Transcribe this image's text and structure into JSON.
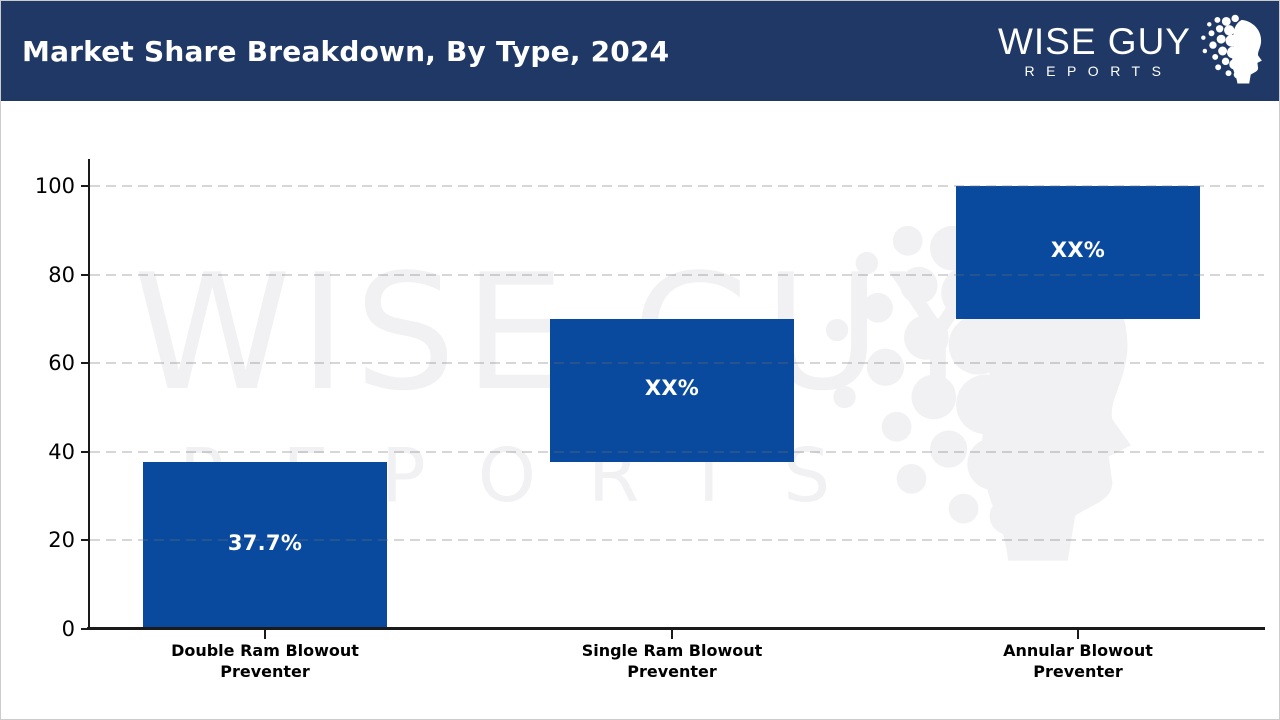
{
  "header": {
    "title": "Market Share Breakdown, By Type, 2024",
    "logo": {
      "name": "wise-guy-reports-logo",
      "line1": "WISE GUY",
      "line2": "REPORTS"
    }
  },
  "watermark": {
    "line1": "WISE GUY",
    "line2": "REPORTS"
  },
  "colors": {
    "header_bg": "#1F3866",
    "bar": "#0A4A9E",
    "bar_label": "#FFFFFF",
    "axis": "#1A1A1A",
    "tick_text": "#000000",
    "watermark": "#F1F1F4",
    "border": "#CCCCCC"
  },
  "chart_data": {
    "type": "bar",
    "subtype": "floating-stacked-percentage",
    "title": "Market Share Breakdown, By Type, 2024",
    "categories": [
      "Double Ram Blowout Preventer",
      "Single Ram Blowout Preventer",
      "Annular Blowout Preventer"
    ],
    "bars": [
      {
        "category": "Double Ram Blowout Preventer",
        "label": "37.7%",
        "start": 0,
        "end": 37.7
      },
      {
        "category": "Single Ram Blowout Preventer",
        "label": "XX%",
        "start": 37.7,
        "end": 70
      },
      {
        "category": "Annular Blowout Preventer",
        "label": "XX%",
        "start": 70,
        "end": 100
      }
    ],
    "xlabel": "",
    "ylabel": "",
    "ylim": [
      0,
      100
    ],
    "yticks": [
      0,
      20,
      40,
      60,
      80,
      100
    ],
    "grid": "horizontal-dashed",
    "legend": "none"
  }
}
